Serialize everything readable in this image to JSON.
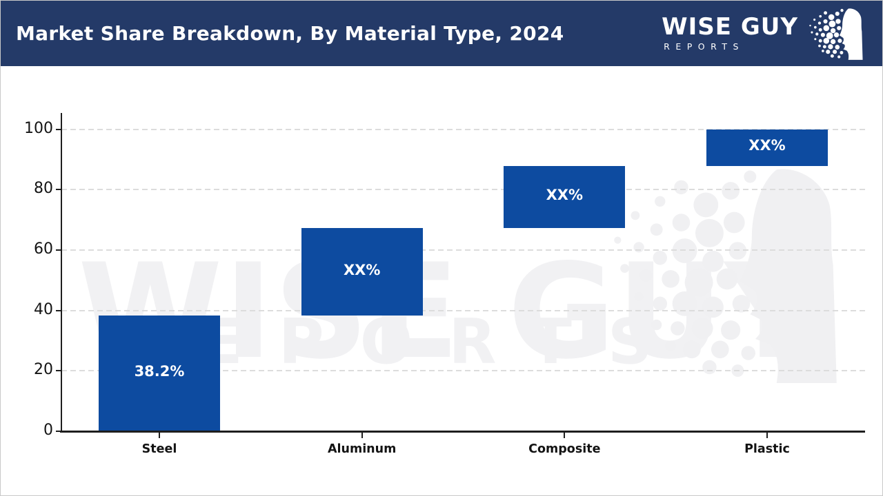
{
  "header": {
    "title": "Market Share Breakdown, By Material Type, 2024",
    "bg_color": "#243a68",
    "logo": {
      "line1": "WISE GUY",
      "line2": "REPORTS"
    }
  },
  "watermark": {
    "line1": "WISE GUY",
    "line2": "REPORTS"
  },
  "chart_data": {
    "type": "bar",
    "subtype": "waterfall",
    "title": "Market Share Breakdown, By Material Type, 2024",
    "categories": [
      "Steel",
      "Aluminum",
      "Composite",
      "Plastic"
    ],
    "series": [
      {
        "name": "Market share (%)",
        "segments": [
          {
            "category": "Steel",
            "start": 0,
            "end": 38.2,
            "label": "38.2%"
          },
          {
            "category": "Aluminum",
            "start": 38.2,
            "end": 67.3,
            "label": "XX%"
          },
          {
            "category": "Composite",
            "start": 67.3,
            "end": 87.8,
            "label": "XX%"
          },
          {
            "category": "Plastic",
            "start": 87.8,
            "end": 100.0,
            "label": "XX%"
          }
        ]
      }
    ],
    "xlabel": "",
    "ylabel": "",
    "ylim": [
      0,
      100
    ],
    "yticks": [
      0,
      20,
      40,
      60,
      80,
      100
    ],
    "grid": "horizontal-dashed",
    "legend": "none",
    "bar_color": "#0d4ba0",
    "grid_color": "#dcdcdc",
    "axis_color": "#1e1e1e"
  }
}
